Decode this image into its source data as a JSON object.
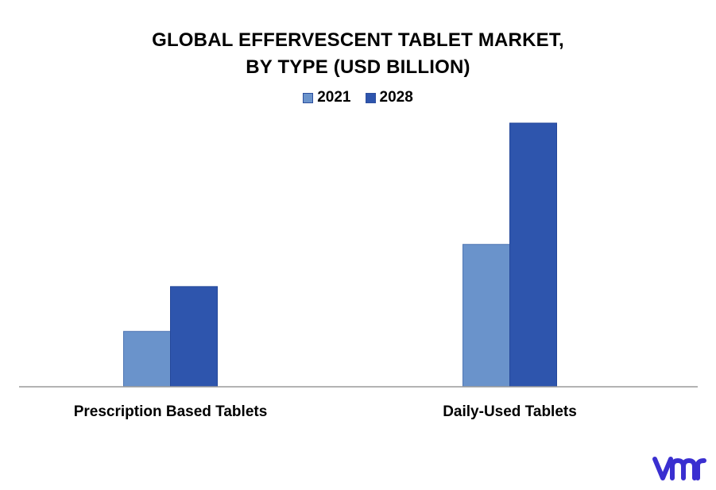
{
  "title_line1": "GLOBAL EFFERVESCENT TABLET MARKET,",
  "title_line2": "BY TYPE (USD BILLION)",
  "colors": {
    "s2021": "#6a93cb",
    "s2028": "#2e55ad",
    "axis": "#9a9a9a",
    "brand": "#3a2fd0"
  },
  "logo_icon": "vmr-logo-icon",
  "chart_data": {
    "type": "bar",
    "title": "GLOBAL EFFERVESCENT TABLET MARKET, BY TYPE (USD BILLION)",
    "categories": [
      "Prescription Based Tablets",
      "Daily-Used Tablets"
    ],
    "series": [
      {
        "name": "2021",
        "values": [
          0.21,
          0.54
        ]
      },
      {
        "name": "2028",
        "values": [
          0.38,
          1.0
        ]
      }
    ],
    "ylim": [
      0,
      1.0
    ],
    "grid": false,
    "legend": "top-center",
    "xlabel": "",
    "ylabel": ""
  }
}
